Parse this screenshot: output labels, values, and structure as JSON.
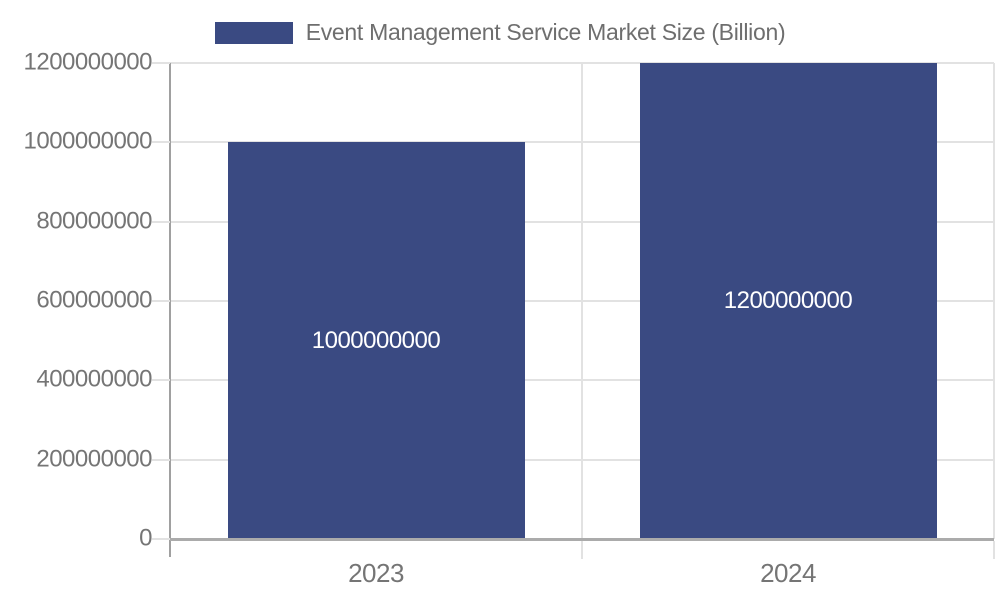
{
  "chart_data": {
    "type": "bar",
    "title": "Event Management Service Market Size (Billion)",
    "categories": [
      "2023",
      "2024"
    ],
    "series": [
      {
        "name": "Event Management Service Market Size (Billion)",
        "values": [
          1000000000,
          1200000000
        ]
      }
    ],
    "value_labels": [
      "1000000000",
      "1200000000"
    ],
    "y_ticks": [
      0,
      200000000,
      400000000,
      600000000,
      800000000,
      1000000000,
      1200000000
    ],
    "y_tick_labels": [
      "0",
      "200000000",
      "400000000",
      "600000000",
      "800000000",
      "1000000000",
      "1200000000"
    ],
    "ylim": [
      0,
      1200000000
    ],
    "xlabel": "",
    "ylabel": "",
    "grid": true,
    "legend_position": "top",
    "colors": {
      "bar": "#3A4A82",
      "gridline": "#e2e2e2",
      "axis_line": "#a0a0a0",
      "baseline": "#ababab",
      "tick_text": "#757575",
      "legend_text": "#6e6e6e",
      "bar_label_text": "#ffffff",
      "background": "#ffffff"
    }
  }
}
